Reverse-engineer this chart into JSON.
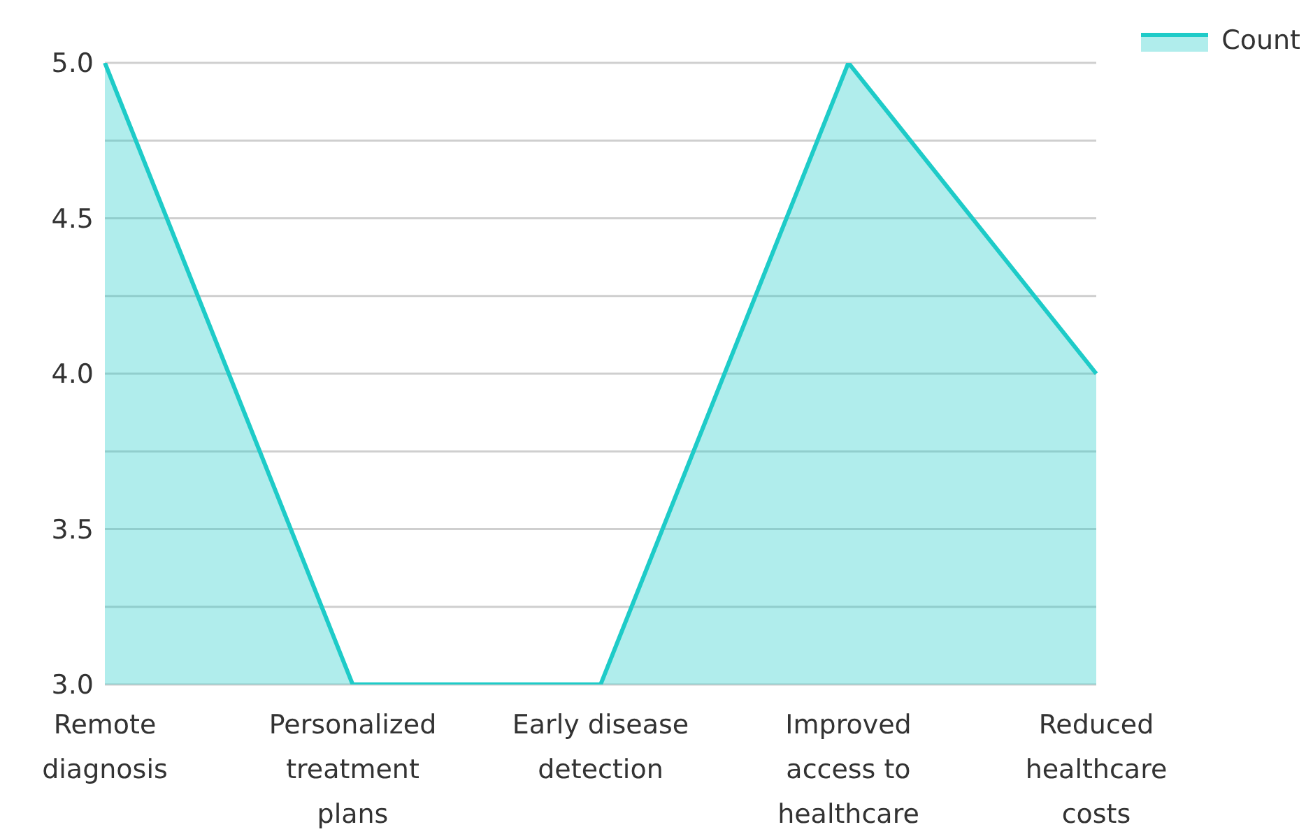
{
  "chart_data": {
    "type": "area",
    "categories": [
      "Remote diagnosis",
      "Personalized treatment plans",
      "Early disease detection",
      "Improved access to healthcare",
      "Reduced healthcare costs"
    ],
    "series": [
      {
        "name": "Count",
        "color": "#1ecbc8",
        "values": [
          5,
          3,
          3,
          5,
          4
        ]
      }
    ],
    "ylim": [
      3,
      5
    ],
    "yticks": [
      {
        "value": 3,
        "label": "3.0"
      },
      {
        "value": 3.25,
        "label": null
      },
      {
        "value": 3.5,
        "label": "3.5"
      },
      {
        "value": 3.75,
        "label": null
      },
      {
        "value": 4,
        "label": "4.0"
      },
      {
        "value": 4.25,
        "label": null
      },
      {
        "value": 4.5,
        "label": "4.5"
      },
      {
        "value": 4.75,
        "label": null
      },
      {
        "value": 5,
        "label": "5.0"
      }
    ],
    "grid": "y",
    "legend": "top right"
  }
}
